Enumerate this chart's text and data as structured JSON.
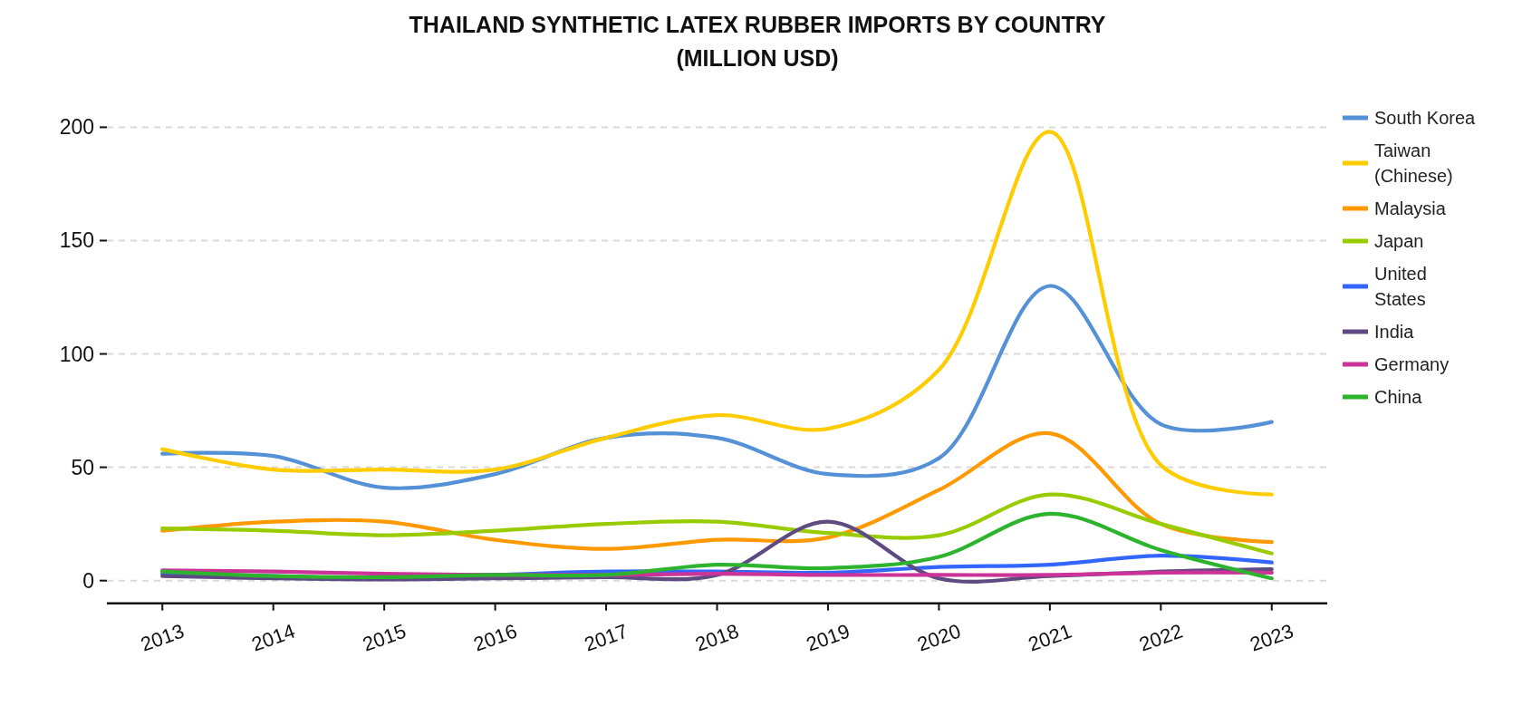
{
  "chart_data": {
    "type": "line",
    "title": "THAILAND SYNTHETIC LATEX RUBBER IMPORTS BY COUNTRY\n(MILLION USD)",
    "x": [
      2013,
      2014,
      2015,
      2016,
      2017,
      2018,
      2019,
      2020,
      2021,
      2022,
      2023
    ],
    "xlim": [
      2012.5,
      2023.5
    ],
    "xticks": [
      2013,
      2014,
      2015,
      2016,
      2017,
      2018,
      2019,
      2020,
      2021,
      2022,
      2023
    ],
    "ylim": [
      -10,
      200
    ],
    "yticks": [
      0,
      50,
      100,
      150,
      200
    ],
    "grid": "y",
    "legend": "right",
    "line_style": "solid",
    "series": [
      {
        "name": "South Korea",
        "color": "#5591d6",
        "values": [
          56,
          55,
          41,
          47,
          63,
          63,
          47,
          54,
          130,
          69,
          70
        ]
      },
      {
        "name": "Taiwan (Chinese)",
        "color": "#ffcc00",
        "values": [
          58,
          49,
          49,
          49,
          63,
          73,
          67,
          93,
          198,
          51,
          38
        ]
      },
      {
        "name": "Malaysia",
        "color": "#ff9900",
        "values": [
          22,
          26,
          26,
          18,
          14,
          18,
          19,
          40,
          65,
          25,
          17
        ]
      },
      {
        "name": "Japan",
        "color": "#99cc00",
        "values": [
          23,
          22,
          20,
          22,
          25,
          26,
          21,
          20,
          38,
          25,
          12
        ]
      },
      {
        "name": "United States",
        "color": "#3366ff",
        "values": [
          3,
          2,
          1,
          2.5,
          4,
          4,
          3.5,
          6,
          7,
          11,
          8
        ]
      },
      {
        "name": "India",
        "color": "#5e4b82",
        "values": [
          2,
          1,
          0.5,
          1,
          1.5,
          2.5,
          26,
          1,
          2,
          4,
          5
        ]
      },
      {
        "name": "Germany",
        "color": "#cc3399",
        "values": [
          4.5,
          4,
          3,
          2.5,
          2.5,
          3,
          2.5,
          2.5,
          2.5,
          3.5,
          3.5
        ]
      },
      {
        "name": "China",
        "color": "#2db32d",
        "values": [
          4,
          2,
          1.5,
          2.5,
          2.5,
          7,
          5.5,
          10.5,
          29.5,
          13.5,
          1
        ]
      }
    ]
  }
}
